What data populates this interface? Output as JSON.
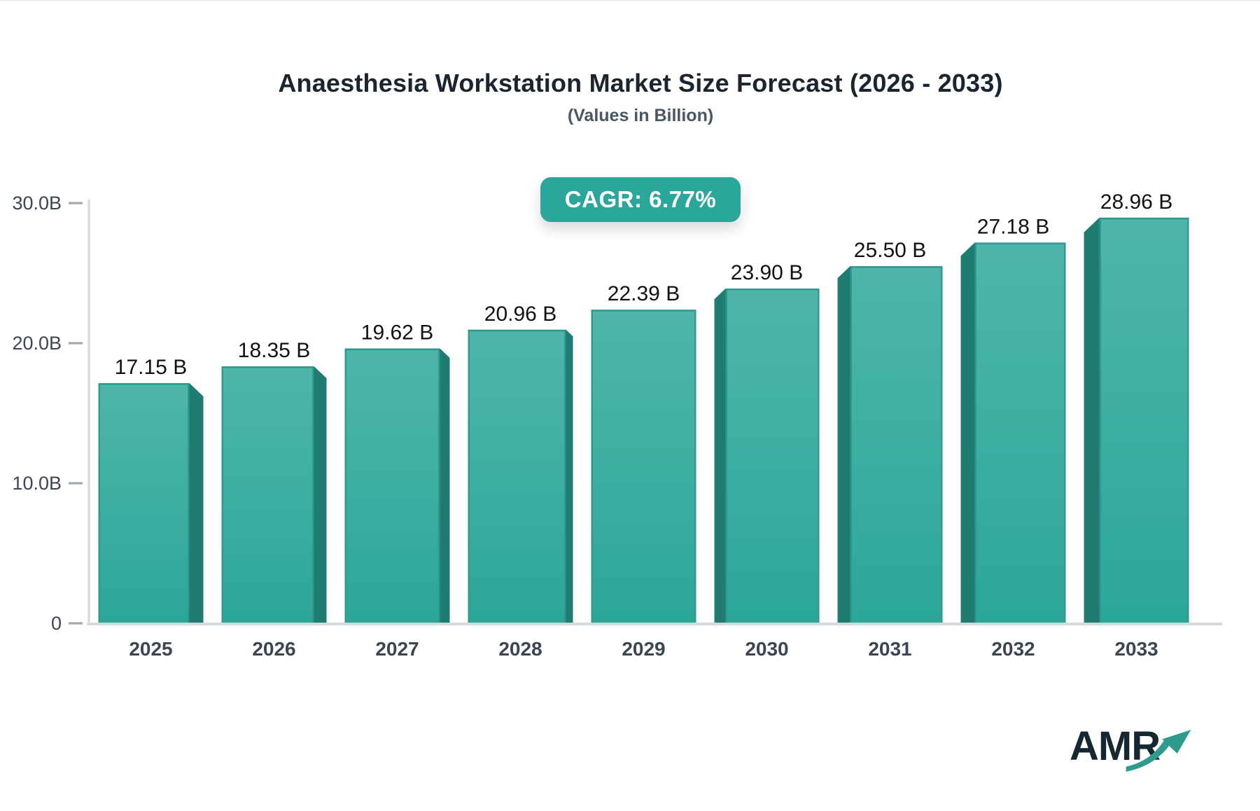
{
  "chart_data": {
    "type": "bar",
    "title": "Anaesthesia Workstation Market Size Forecast (2026 - 2033)",
    "subtitle": "(Values in Billion)",
    "annotation_badge": "CAGR: 6.77%",
    "categories": [
      "2025",
      "2026",
      "2027",
      "2028",
      "2029",
      "2030",
      "2031",
      "2032",
      "2033"
    ],
    "values": [
      17.15,
      18.35,
      19.62,
      20.96,
      22.39,
      23.9,
      25.5,
      27.18,
      28.96
    ],
    "value_labels": [
      "17.15 B",
      "18.35 B",
      "19.62 B",
      "20.96 B",
      "22.39 B",
      "23.90 B",
      "25.50 B",
      "27.18 B",
      "28.96 B"
    ],
    "xlabel": "",
    "ylabel": "",
    "unit": "Billion USD",
    "ylim": [
      0,
      30
    ],
    "yticks": [
      {
        "value": 0,
        "label": "0"
      },
      {
        "value": 10,
        "label": "10.0B"
      },
      {
        "value": 20,
        "label": "20.0B"
      },
      {
        "value": 30,
        "label": "30.0B"
      }
    ],
    "grid": false,
    "legend": false,
    "style": {
      "bar_gradient_top": "#4FB5AB",
      "bar_gradient_bottom": "#2BA79A",
      "bar_edge": "#2E998C",
      "bar_side_face": "#1F7C71",
      "axis_line": "#D6D9DE",
      "tick_mark": "#A2A9B4",
      "axis_text": "#3C4653",
      "value_text": "#0F1216",
      "badge_bg": "#2BA69A",
      "badge_text": "#FFFFFF",
      "perspective_side": [
        "right",
        "right",
        "right",
        "right",
        "none",
        "left",
        "left",
        "left",
        "left"
      ],
      "perspective_side_widths": [
        20,
        18,
        14,
        10,
        0,
        16,
        18,
        20,
        22
      ]
    }
  },
  "logo": {
    "text": "AMR",
    "text_color": "#152731",
    "arrow_color": "#2F9B8F"
  }
}
